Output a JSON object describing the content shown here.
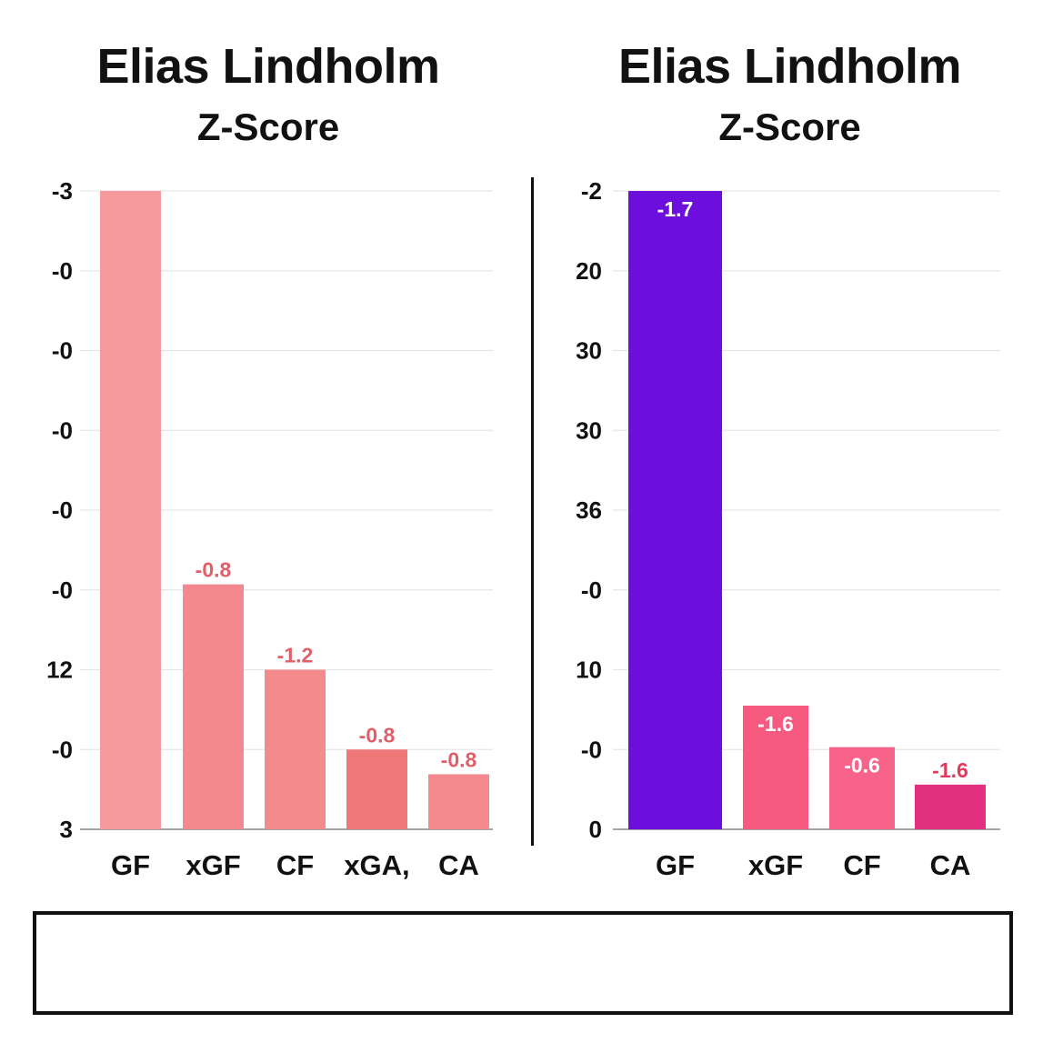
{
  "chart_data": [
    {
      "type": "bar",
      "title": "Elias Lindholm",
      "subtitle": "Z-Score",
      "categories": [
        "GF",
        "xGF",
        "CF",
        "xGA,",
        "CA"
      ],
      "tick_labels": [
        "-3",
        "-0",
        "-0",
        "-0",
        "-0",
        "-0",
        "12",
        "-0",
        "3"
      ],
      "bar_levels": [
        8.0,
        3.07,
        2.0,
        1.0,
        0.69
      ],
      "data_labels": [
        "",
        "-0.8",
        "-1.2",
        "-0.8",
        "-0.8"
      ],
      "bar_colors": [
        "#f79a9e",
        "#f3888f",
        "#f38b8d",
        "#ef7778",
        "#f4898e"
      ],
      "label_color": "#e0606a",
      "label_position": "above",
      "grid": true
    },
    {
      "type": "bar",
      "title": "Elias Lindholm",
      "subtitle": "Z-Score",
      "categories": [
        "GF",
        "xGF",
        "CF",
        "CA"
      ],
      "tick_labels": [
        "-2",
        "20",
        "30",
        "30",
        "36",
        "-0",
        "10",
        "-0",
        "0"
      ],
      "bar_levels": [
        8.0,
        1.55,
        1.03,
        0.56
      ],
      "data_labels": [
        "-1.7",
        "-1.6",
        "-0.6",
        "-1.6"
      ],
      "bar_colors": [
        "#6c0fdc",
        "#f65a80",
        "#f8638a",
        "#e2307e"
      ],
      "label_colors": [
        "#ffffff",
        "#ffffff",
        "#ffffff",
        "#e03b5c"
      ],
      "label_positions": [
        "inside",
        "inside",
        "inside",
        "above"
      ],
      "grid": true
    }
  ]
}
